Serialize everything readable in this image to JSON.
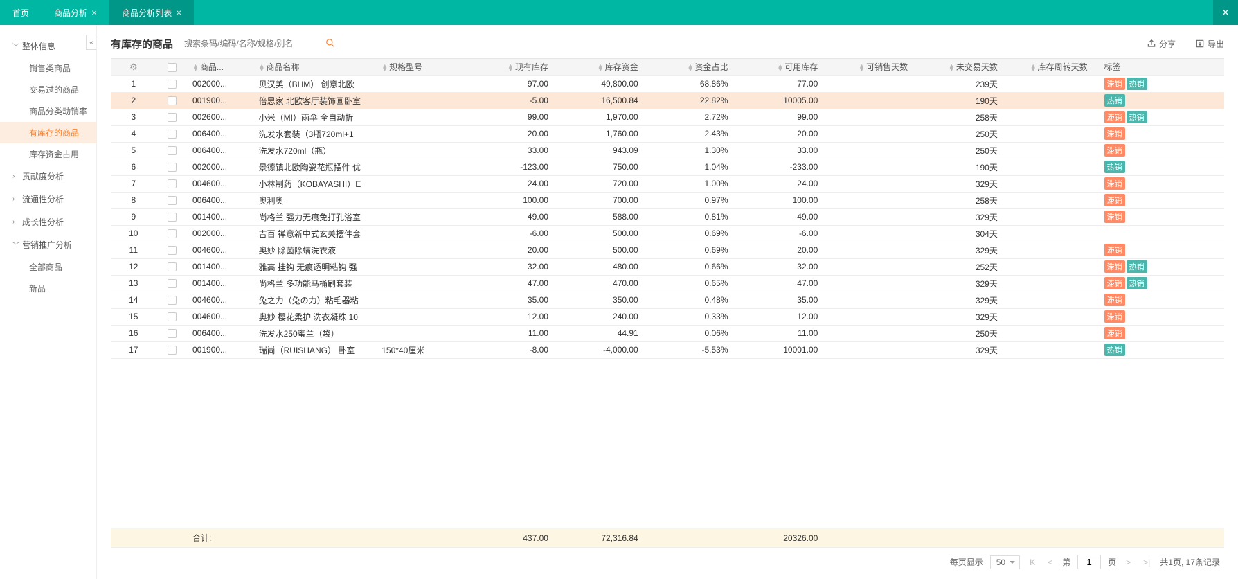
{
  "tabs": [
    {
      "label": "首页",
      "closable": false,
      "active": false
    },
    {
      "label": "商品分析",
      "closable": true,
      "active": false
    },
    {
      "label": "商品分析列表",
      "closable": true,
      "active": true
    }
  ],
  "sidebar": {
    "groups": [
      {
        "title": "整体信息",
        "expanded": true,
        "items": [
          {
            "label": "销售类商品",
            "active": false
          },
          {
            "label": "交易过的商品",
            "active": false
          },
          {
            "label": "商品分类动销率",
            "active": false
          },
          {
            "label": "有库存的商品",
            "active": true
          },
          {
            "label": "库存资金占用",
            "active": false
          }
        ]
      },
      {
        "title": "贡献度分析",
        "expanded": false,
        "items": []
      },
      {
        "title": "流通性分析",
        "expanded": false,
        "items": []
      },
      {
        "title": "成长性分析",
        "expanded": false,
        "items": []
      },
      {
        "title": "营销推广分析",
        "expanded": true,
        "items": [
          {
            "label": "全部商品",
            "active": false
          },
          {
            "label": "新品",
            "active": false
          }
        ]
      }
    ]
  },
  "page": {
    "title": "有库存的商品",
    "search_placeholder": "搜索条码/编码/名称/规格/别名",
    "share_label": "分享",
    "export_label": "导出"
  },
  "columns": {
    "idx": "",
    "code": "商品...",
    "name": "商品名称",
    "spec": "规格型号",
    "stock": "现有库存",
    "fund": "库存资金",
    "fund_pct": "资金占比",
    "avail": "可用库存",
    "sale_days": "可销售天数",
    "untraded_days": "未交易天数",
    "turnover_days": "库存周转天数",
    "tags": "标签"
  },
  "tag_labels": {
    "lag": "滞销",
    "hot": "热销"
  },
  "rows": [
    {
      "idx": 1,
      "code": "002000...",
      "name": "贝汉美（BHM） 创意北欧",
      "spec": "",
      "stock": "97.00",
      "fund": "49,800.00",
      "pct": "68.86%",
      "avail": "77.00",
      "sale_days": "",
      "untraded": "239天",
      "turnover": "",
      "tags": [
        "lag",
        "hot"
      ],
      "hl": false
    },
    {
      "idx": 2,
      "code": "001900...",
      "name": "倍思家 北欧客厅装饰画卧室",
      "spec": "",
      "stock": "-5.00",
      "fund": "16,500.84",
      "pct": "22.82%",
      "avail": "10005.00",
      "sale_days": "",
      "untraded": "190天",
      "turnover": "",
      "tags": [
        "hot"
      ],
      "hl": true
    },
    {
      "idx": 3,
      "code": "002600...",
      "name": "小米（MI）雨伞 全自动折",
      "spec": "",
      "stock": "99.00",
      "fund": "1,970.00",
      "pct": "2.72%",
      "avail": "99.00",
      "sale_days": "",
      "untraded": "258天",
      "turnover": "",
      "tags": [
        "lag",
        "hot"
      ],
      "hl": false
    },
    {
      "idx": 4,
      "code": "006400...",
      "name": "洗发水套装（3瓶720ml+1",
      "spec": "",
      "stock": "20.00",
      "fund": "1,760.00",
      "pct": "2.43%",
      "avail": "20.00",
      "sale_days": "",
      "untraded": "250天",
      "turnover": "",
      "tags": [
        "lag"
      ],
      "hl": false
    },
    {
      "idx": 5,
      "code": "006400...",
      "name": "洗发水720ml（瓶）",
      "spec": "",
      "stock": "33.00",
      "fund": "943.09",
      "pct": "1.30%",
      "avail": "33.00",
      "sale_days": "",
      "untraded": "250天",
      "turnover": "",
      "tags": [
        "lag"
      ],
      "hl": false
    },
    {
      "idx": 6,
      "code": "002000...",
      "name": "景德镇北欧陶瓷花瓶摆件 优",
      "spec": "",
      "stock": "-123.00",
      "fund": "750.00",
      "pct": "1.04%",
      "avail": "-233.00",
      "sale_days": "",
      "untraded": "190天",
      "turnover": "",
      "tags": [
        "hot"
      ],
      "hl": false
    },
    {
      "idx": 7,
      "code": "004600...",
      "name": "小林制药（KOBAYASHI）E",
      "spec": "",
      "stock": "24.00",
      "fund": "720.00",
      "pct": "1.00%",
      "avail": "24.00",
      "sale_days": "",
      "untraded": "329天",
      "turnover": "",
      "tags": [
        "lag"
      ],
      "hl": false
    },
    {
      "idx": 8,
      "code": "006400...",
      "name": "奥利奥",
      "spec": "",
      "stock": "100.00",
      "fund": "700.00",
      "pct": "0.97%",
      "avail": "100.00",
      "sale_days": "",
      "untraded": "258天",
      "turnover": "",
      "tags": [
        "lag"
      ],
      "hl": false
    },
    {
      "idx": 9,
      "code": "001400...",
      "name": "尚格兰 强力无痕免打孔浴室",
      "spec": "",
      "stock": "49.00",
      "fund": "588.00",
      "pct": "0.81%",
      "avail": "49.00",
      "sale_days": "",
      "untraded": "329天",
      "turnover": "",
      "tags": [
        "lag"
      ],
      "hl": false
    },
    {
      "idx": 10,
      "code": "002000...",
      "name": "吉百 禅意新中式玄关摆件套",
      "spec": "",
      "stock": "-6.00",
      "fund": "500.00",
      "pct": "0.69%",
      "avail": "-6.00",
      "sale_days": "",
      "untraded": "304天",
      "turnover": "",
      "tags": [],
      "hl": false
    },
    {
      "idx": 11,
      "code": "004600...",
      "name": "奥妙 除菌除螨洗衣液",
      "spec": "",
      "stock": "20.00",
      "fund": "500.00",
      "pct": "0.69%",
      "avail": "20.00",
      "sale_days": "",
      "untraded": "329天",
      "turnover": "",
      "tags": [
        "lag"
      ],
      "hl": false
    },
    {
      "idx": 12,
      "code": "001400...",
      "name": "雅高 挂钩 无痕透明粘钩 强",
      "spec": "",
      "stock": "32.00",
      "fund": "480.00",
      "pct": "0.66%",
      "avail": "32.00",
      "sale_days": "",
      "untraded": "252天",
      "turnover": "",
      "tags": [
        "lag",
        "hot"
      ],
      "hl": false
    },
    {
      "idx": 13,
      "code": "001400...",
      "name": "尚格兰 多功能马桶刷套装 ",
      "spec": "",
      "stock": "47.00",
      "fund": "470.00",
      "pct": "0.65%",
      "avail": "47.00",
      "sale_days": "",
      "untraded": "329天",
      "turnover": "",
      "tags": [
        "lag",
        "hot"
      ],
      "hl": false
    },
    {
      "idx": 14,
      "code": "004600...",
      "name": "兔之力（兔の力）粘毛器粘",
      "spec": "",
      "stock": "35.00",
      "fund": "350.00",
      "pct": "0.48%",
      "avail": "35.00",
      "sale_days": "",
      "untraded": "329天",
      "turnover": "",
      "tags": [
        "lag"
      ],
      "hl": false
    },
    {
      "idx": 15,
      "code": "004600...",
      "name": "奥妙 樱花柔护 洗衣凝珠 10",
      "spec": "",
      "stock": "12.00",
      "fund": "240.00",
      "pct": "0.33%",
      "avail": "12.00",
      "sale_days": "",
      "untraded": "329天",
      "turnover": "",
      "tags": [
        "lag"
      ],
      "hl": false
    },
    {
      "idx": 16,
      "code": "006400...",
      "name": "洗发水250蜜兰（袋）",
      "spec": "",
      "stock": "11.00",
      "fund": "44.91",
      "pct": "0.06%",
      "avail": "11.00",
      "sale_days": "",
      "untraded": "250天",
      "turnover": "",
      "tags": [
        "lag"
      ],
      "hl": false
    },
    {
      "idx": 17,
      "code": "001900...",
      "name": "瑞尚（RUISHANG） 卧室",
      "spec": "150*40厘米",
      "stock": "-8.00",
      "fund": "-4,000.00",
      "pct": "-5.53%",
      "avail": "10001.00",
      "sale_days": "",
      "untraded": "329天",
      "turnover": "",
      "tags": [
        "hot"
      ],
      "hl": false
    }
  ],
  "totals": {
    "label": "合计:",
    "stock": "437.00",
    "fund": "72,316.84",
    "avail": "20326.00"
  },
  "pager": {
    "per_page_label": "每页显示",
    "per_page_value": "50",
    "page_prefix": "第",
    "page_value": "1",
    "page_suffix": "页",
    "summary": "共1页, 17条记录"
  }
}
